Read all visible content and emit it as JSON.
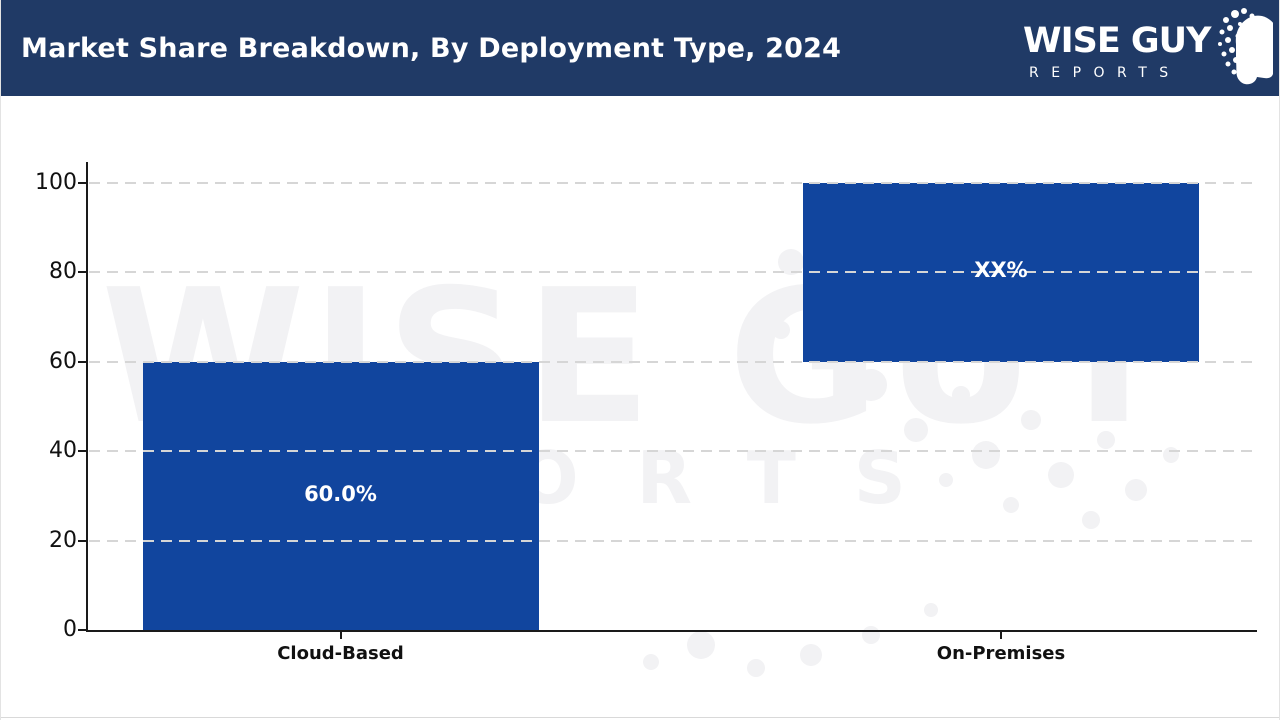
{
  "header": {
    "title": "Market Share Breakdown, By Deployment Type, 2024",
    "logo": {
      "line1": "WISE GUY",
      "line2": "REPORTS"
    }
  },
  "watermark": {
    "line1": "WISE GUY",
    "line2": "REPORTS"
  },
  "style": {
    "header_bg": "#203A66",
    "bar_color": "#11459E",
    "bar_label_color": "#FFFFFF",
    "grid_color": "#D6D6D6",
    "axis_color": "#1A1A1A",
    "tick_label_color": "#111111",
    "watermark_color": "#F2F2F4",
    "card_bg": "#FFFFFF"
  },
  "chart_data": {
    "type": "bar",
    "subtype": "stacked-range (waterfall-style segments)",
    "title": "Market Share Breakdown, By Deployment Type, 2024",
    "xlabel": "",
    "ylabel": "",
    "categories": [
      "Cloud-Based",
      "On-Premises"
    ],
    "bars": [
      {
        "category": "Cloud-Based",
        "start": 0,
        "end": 60,
        "value": 60.0,
        "label": "60.0%"
      },
      {
        "category": "On-Premises",
        "start": 60,
        "end": 100,
        "value": null,
        "label": "XX%"
      }
    ],
    "yticks": [
      0,
      20,
      40,
      60,
      80,
      100
    ],
    "ylim": [
      0,
      104.7
    ],
    "grid": "horizontal-dashed",
    "legend": "none"
  }
}
